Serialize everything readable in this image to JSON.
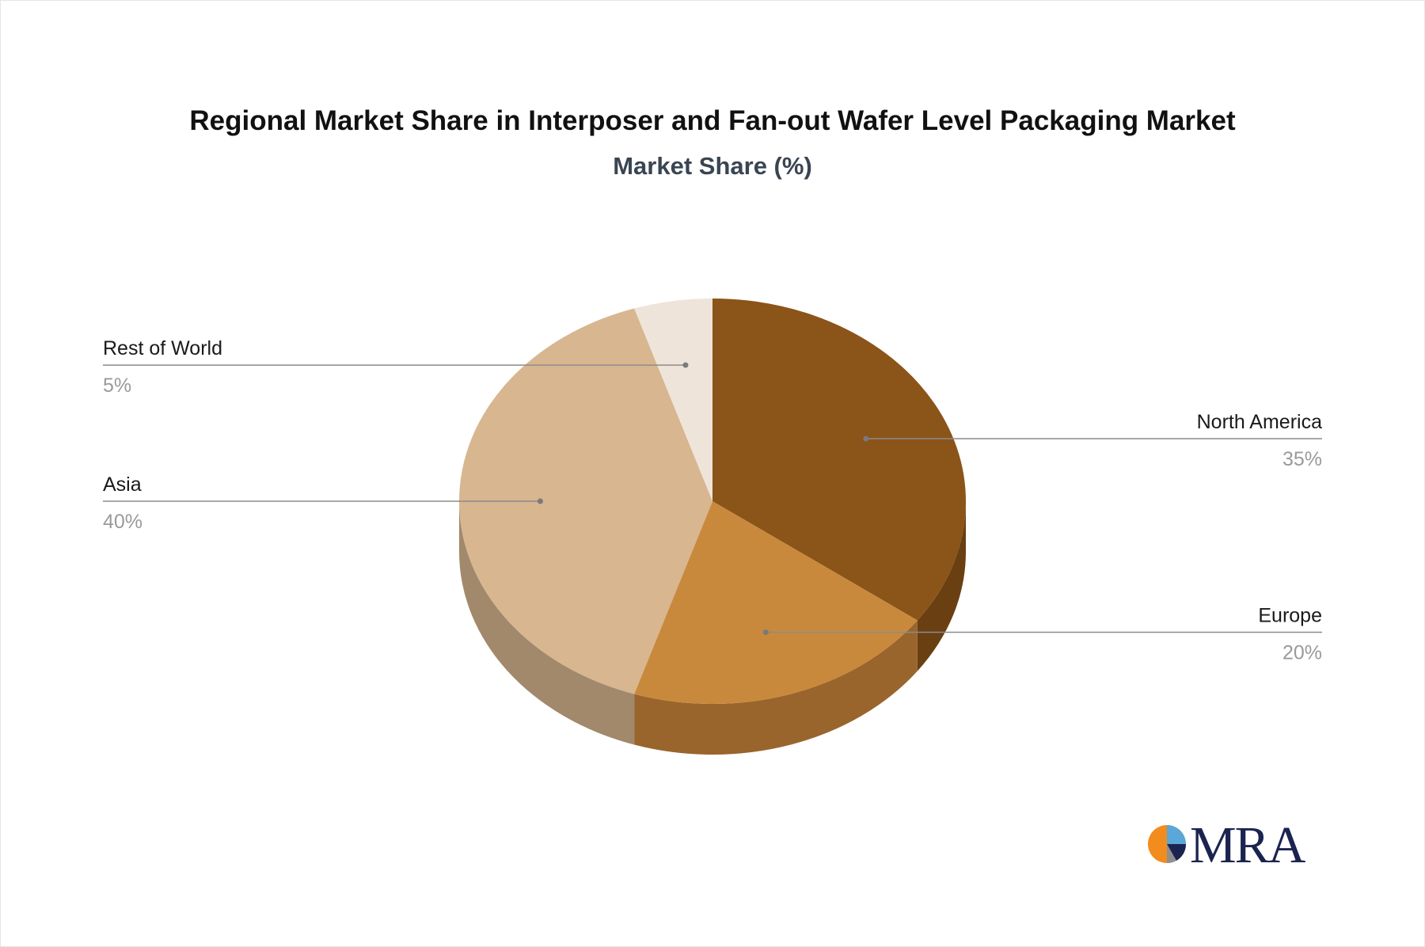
{
  "chart_data": {
    "type": "pie",
    "title": "Regional Market Share in Interposer and Fan-out Wafer Level Packaging Market",
    "subtitle": "Market Share (%)",
    "style": "3d",
    "slices": [
      {
        "name": "North America",
        "value": 35,
        "label": "35%",
        "color": "#8b5419",
        "side_color": "#6a3f12",
        "label_side": "right"
      },
      {
        "name": "Europe",
        "value": 20,
        "label": "20%",
        "color": "#c9893c",
        "side_color": "#99652c",
        "label_side": "right"
      },
      {
        "name": "Asia",
        "value": 40,
        "label": "40%",
        "color": "#d7b690",
        "side_color": "#a2896c",
        "label_side": "left"
      },
      {
        "name": "Rest of World",
        "value": 5,
        "label": "5%",
        "color": "#efe4da",
        "side_color": "#b5aca4",
        "label_side": "left"
      }
    ]
  },
  "branding": {
    "logo_text": "MRA",
    "colors": {
      "orange": "#f28c1e",
      "navy": "#1b2450",
      "light_blue": "#5aa7d8"
    }
  }
}
